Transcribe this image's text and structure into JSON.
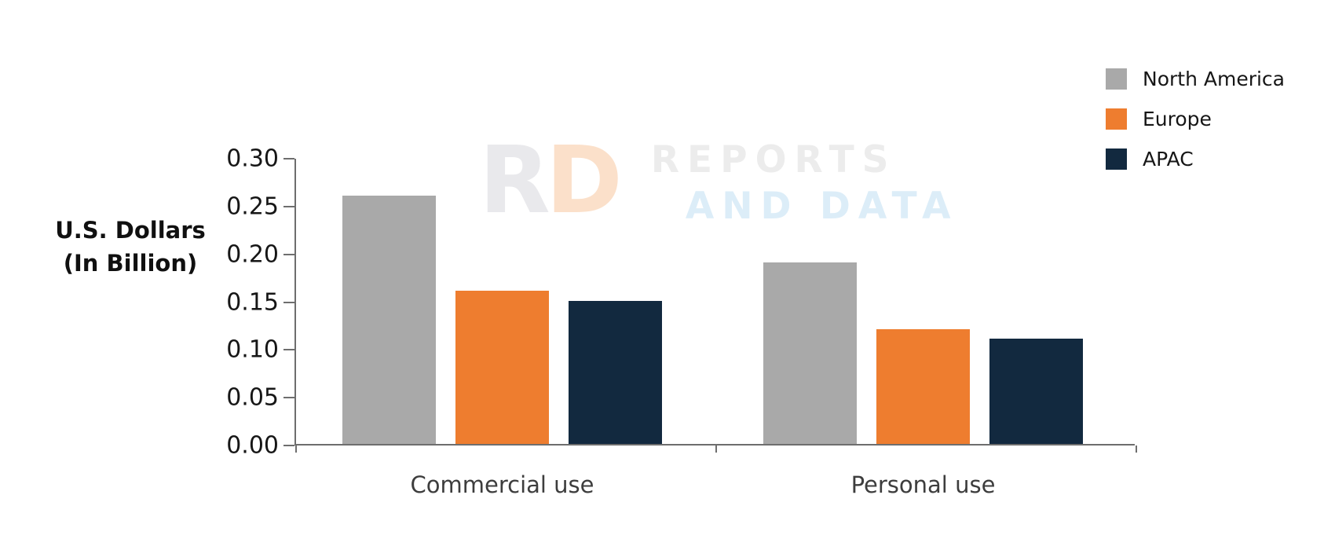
{
  "chart_data": {
    "type": "bar",
    "title": "",
    "categories": [
      "Commercial use",
      "Personal use"
    ],
    "series": [
      {
        "name": "North America",
        "color": "#a9a9a9",
        "values": [
          0.26,
          0.19
        ]
      },
      {
        "name": "Europe",
        "color": "#ee7d2f",
        "values": [
          0.16,
          0.12
        ]
      },
      {
        "name": "APAC",
        "color": "#12293f",
        "values": [
          0.15,
          0.11
        ]
      }
    ],
    "ylabel": "U.S. Dollars (In Billion)",
    "ylabel_lines": [
      "U.S. Dollars",
      "(In Billion)"
    ],
    "ytick_labels": [
      "0.00",
      "0.05",
      "0.10",
      "0.15",
      "0.20",
      "0.25",
      "0.30"
    ],
    "ylim": [
      0,
      0.3
    ],
    "xlabel": "",
    "grid": false,
    "legend_position": "top-right"
  },
  "watermark": {
    "logo_r": "R",
    "logo_d": "D",
    "line1": "REPORTS",
    "line2": "AND DATA"
  }
}
